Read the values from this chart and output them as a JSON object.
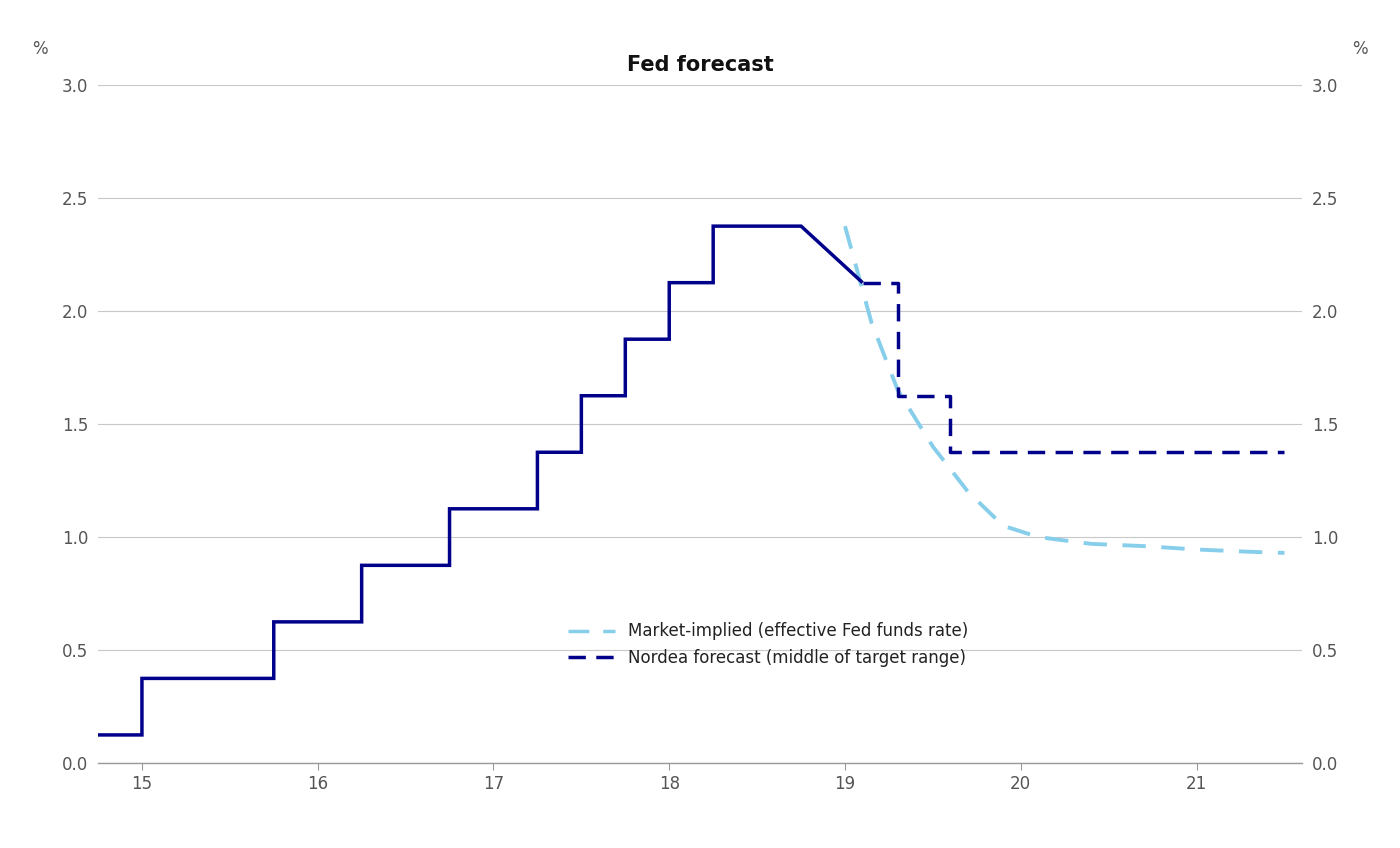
{
  "title": "Fed forecast",
  "ylabel_left": "%",
  "ylabel_right": "%",
  "ylim": [
    0.0,
    3.0
  ],
  "xlim": [
    14.75,
    21.6
  ],
  "yticks": [
    0.0,
    0.5,
    1.0,
    1.5,
    2.0,
    2.5,
    3.0
  ],
  "xticks": [
    15,
    16,
    17,
    18,
    19,
    20,
    21
  ],
  "background_color": "#ffffff",
  "grid_color": "#c8c8c8",
  "nordea_solid_x": [
    14.75,
    15.0,
    15.0,
    15.25,
    15.25,
    15.75,
    15.75,
    16.25,
    16.25,
    16.75,
    16.75,
    17.0,
    17.0,
    17.25,
    17.25,
    17.5,
    17.5,
    17.75,
    17.75,
    18.0,
    18.0,
    18.25,
    18.25,
    18.75,
    18.75,
    19.1
  ],
  "nordea_solid_y": [
    0.125,
    0.125,
    0.375,
    0.375,
    0.375,
    0.375,
    0.625,
    0.625,
    0.875,
    0.875,
    1.125,
    1.125,
    1.125,
    1.125,
    1.375,
    1.375,
    1.625,
    1.625,
    1.875,
    1.875,
    2.125,
    2.125,
    2.375,
    2.375,
    2.375,
    2.125
  ],
  "nordea_dashed_x": [
    19.1,
    19.3,
    19.3,
    19.6,
    19.6,
    20.0,
    20.0,
    21.5
  ],
  "nordea_dashed_y": [
    2.125,
    2.125,
    1.625,
    1.625,
    1.375,
    1.375,
    1.375,
    1.375
  ],
  "market_x": [
    19.0,
    19.15,
    19.3,
    19.5,
    19.7,
    19.9,
    20.1,
    20.4,
    20.7,
    21.0,
    21.3,
    21.5
  ],
  "market_y": [
    2.375,
    1.95,
    1.65,
    1.4,
    1.2,
    1.05,
    1.0,
    0.97,
    0.96,
    0.945,
    0.935,
    0.93
  ],
  "nordea_color": "#00008B",
  "market_color": "#87CEEB",
  "legend_label_market": "Market-implied (effective Fed funds rate)",
  "legend_label_nordea": "Nordea forecast (middle of target range)",
  "title_fontsize": 15,
  "tick_fontsize": 12,
  "legend_fontsize": 12
}
